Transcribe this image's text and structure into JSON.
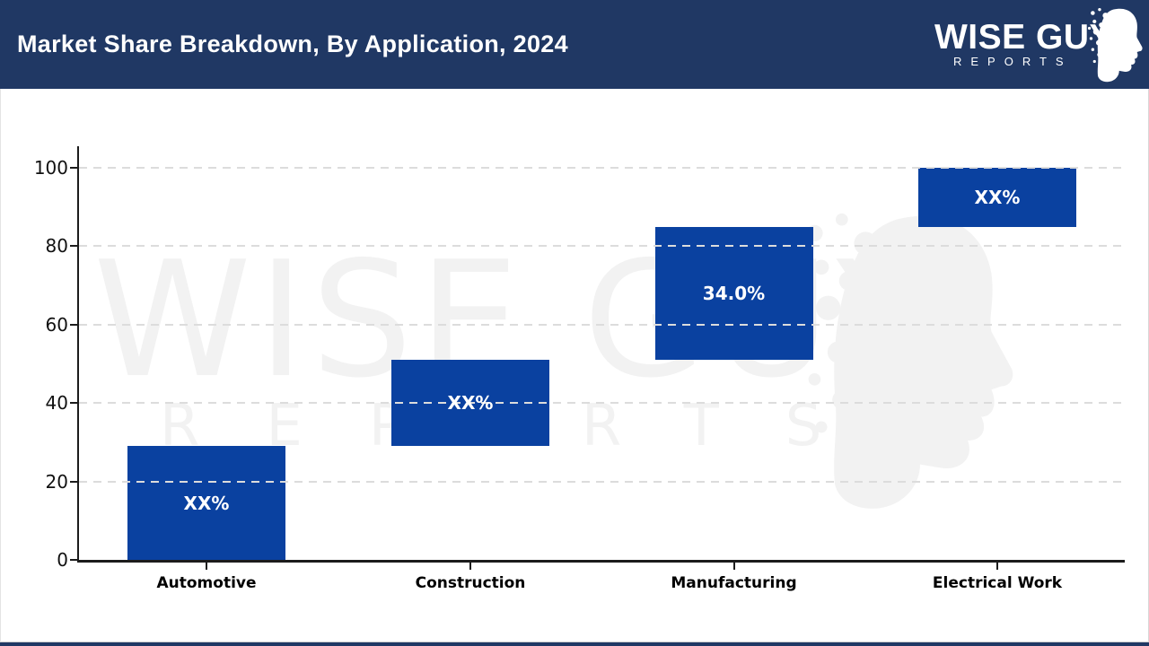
{
  "header": {
    "title": "Market Share Breakdown, By Application, 2024",
    "logo": {
      "primary": "WISE GUY",
      "secondary": "REPORTS"
    }
  },
  "watermark": {
    "line1": "WISE GUY",
    "line2": "REPORTS"
  },
  "chart_data": {
    "type": "bar",
    "subtype": "floating-waterfall",
    "title": "Market Share Breakdown, By Application, 2024",
    "xlabel": "",
    "ylabel": "",
    "categories": [
      "Automotive",
      "Construction",
      "Manufacturing",
      "Electrical Work"
    ],
    "segments": [
      {
        "category": "Automotive",
        "start": 0,
        "end": 29,
        "value": 29,
        "label": "XX%"
      },
      {
        "category": "Construction",
        "start": 29,
        "end": 51,
        "value": 22,
        "label": "XX%"
      },
      {
        "category": "Manufacturing",
        "start": 51,
        "end": 85,
        "value": 34,
        "label": "34.0%"
      },
      {
        "category": "Electrical Work",
        "start": 85,
        "end": 100,
        "value": 15,
        "label": "XX%"
      }
    ],
    "yticks": [
      0,
      20,
      40,
      60,
      80,
      100
    ],
    "ylim": [
      0,
      105
    ],
    "grid": "dashed-horizontal",
    "legend": "none",
    "bar_color": "#0a41a0",
    "bar_label_color": "#ffffff"
  },
  "colors": {
    "header_bg": "#203864",
    "footer_bg": "#203864",
    "bar": "#0a41a0",
    "gridline": "#dcdcdc",
    "axis": "#1c1c1c",
    "watermark": "#f2f2f2"
  }
}
